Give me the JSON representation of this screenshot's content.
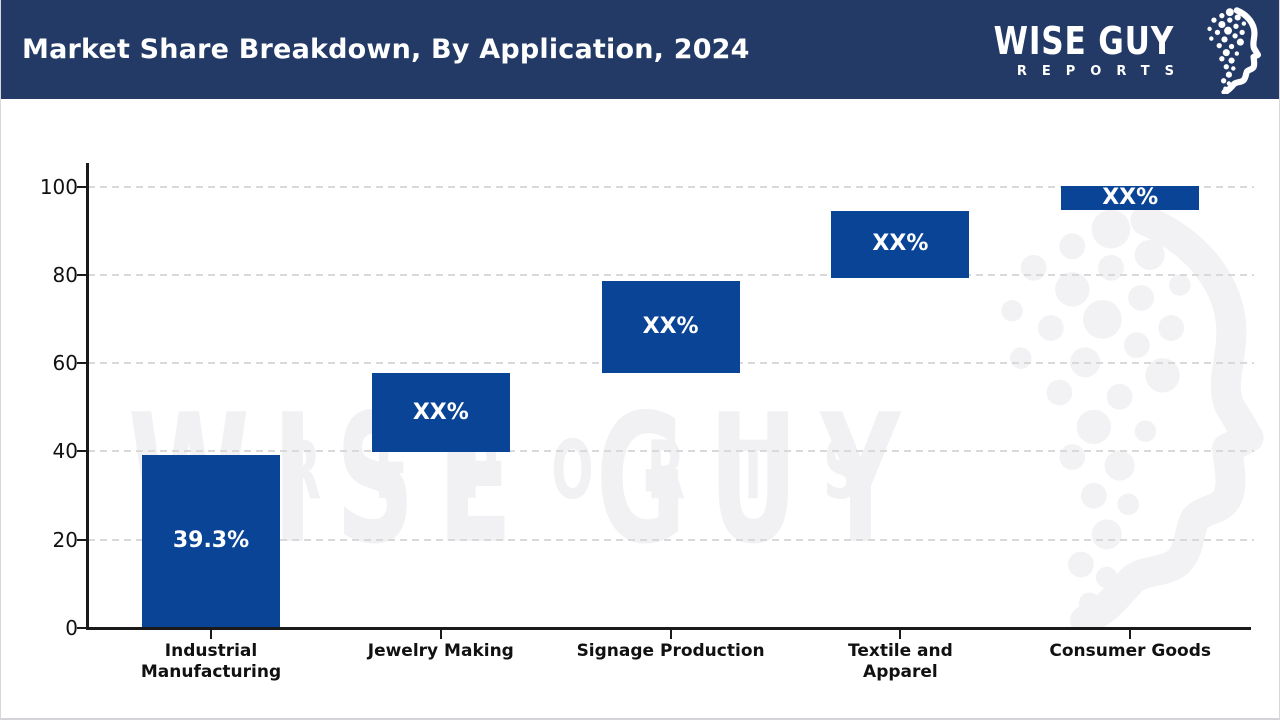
{
  "header": {
    "title": "Market Share Breakdown, By Application, 2024",
    "logo": {
      "wordmark": "WISE GUY",
      "subtext": "REPORTS"
    }
  },
  "watermark": {
    "wordmark": "WISE GUY",
    "subtext": "REPORTS"
  },
  "chart_data": {
    "type": "bar",
    "subtype": "waterfall",
    "title": "Market Share Breakdown, By Application, 2024",
    "categories": [
      "Industrial\nManufacturing",
      "Jewelry Making",
      "Signage Production",
      "Textile and\nApparel",
      "Consumer Goods"
    ],
    "segments": [
      {
        "category": "Industrial Manufacturing",
        "start": 0,
        "end": 39.3,
        "label": "39.3%"
      },
      {
        "category": "Jewelry Making",
        "start": 39.8,
        "end": 57.8,
        "label": "XX%"
      },
      {
        "category": "Signage Production",
        "start": 57.8,
        "end": 78.7,
        "label": "XX%"
      },
      {
        "category": "Textile and Apparel",
        "start": 79.3,
        "end": 94.6,
        "label": "XX%"
      },
      {
        "category": "Consumer Goods",
        "start": 94.7,
        "end": 100.2,
        "label": "XX%"
      }
    ],
    "ylim": [
      0,
      100
    ],
    "yticks": [
      0,
      20,
      40,
      60,
      80,
      100
    ],
    "grid": "horizontal-dashed",
    "legend": null,
    "bar_color": "#0a4496"
  },
  "colors": {
    "header_bg": "#233a66",
    "bar": "#0a4496",
    "grid": "#d9d9d9",
    "axis": "#1a1a1a",
    "watermark": "#f1f1f4"
  }
}
